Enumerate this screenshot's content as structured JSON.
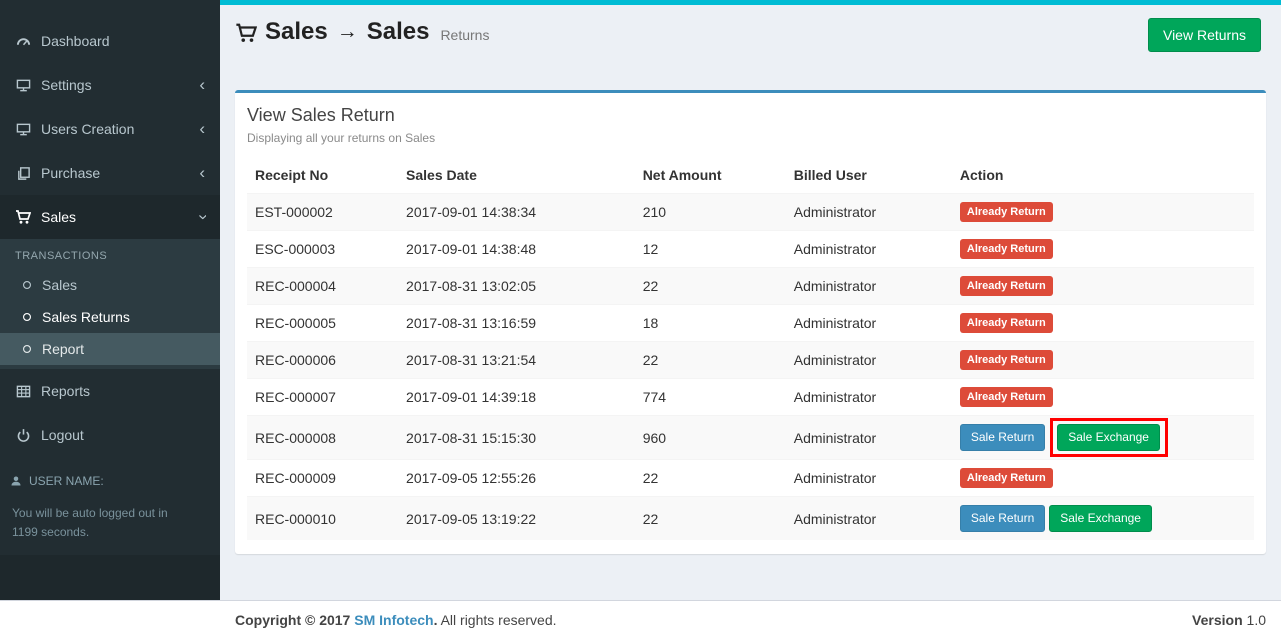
{
  "colors": {
    "accent_strip": "#00bcd4",
    "primary_blue": "#3c8dbc",
    "success_green": "#00a65a",
    "danger_red": "#dd4b39",
    "sidebar_bg": "#222d32",
    "highlight_red": "#ff0000"
  },
  "sidebar": {
    "items": [
      {
        "label": "Dashboard",
        "icon": "dashboard-icon"
      },
      {
        "label": "Settings",
        "icon": "desktop-icon",
        "chevron": "left"
      },
      {
        "label": "Users Creation",
        "icon": "desktop-icon",
        "chevron": "left"
      },
      {
        "label": "Purchase",
        "icon": "copy-icon",
        "chevron": "left"
      },
      {
        "label": "Sales",
        "icon": "cart-icon",
        "chevron": "down",
        "active": true
      }
    ],
    "section_label": "TRANSACTIONS",
    "submenu": [
      {
        "label": "Sales",
        "icon": "circle-icon"
      },
      {
        "label": "Sales Returns",
        "icon": "circle-icon",
        "active": true
      },
      {
        "label": "Report",
        "icon": "circle-icon",
        "hovered": true
      }
    ],
    "items_bottom": [
      {
        "label": "Reports",
        "icon": "table-icon"
      },
      {
        "label": "Logout",
        "icon": "power-icon"
      }
    ],
    "user_label": "USER NAME:",
    "logout_notice": "You will be auto logged out in 1199 seconds."
  },
  "header": {
    "title_primary": "Sales",
    "arrow": "→",
    "title_secondary": "Sales",
    "title_sub": "Returns",
    "view_returns_button": "View Returns"
  },
  "panel": {
    "title": "View Sales Return",
    "subtitle": "Displaying all your returns on Sales",
    "table": {
      "columns": [
        "Receipt No",
        "Sales Date",
        "Net Amount",
        "Billed User",
        "Action"
      ],
      "rows": [
        {
          "receipt_no": "EST-000002",
          "sales_date": "2017-09-01 14:38:34",
          "net_amount": "210",
          "billed_user": "Administrator",
          "actions": [
            {
              "label": "Already Return",
              "kind": "badge",
              "style": "danger"
            }
          ]
        },
        {
          "receipt_no": "ESC-000003",
          "sales_date": "2017-09-01 14:38:48",
          "net_amount": "12",
          "billed_user": "Administrator",
          "actions": [
            {
              "label": "Already Return",
              "kind": "badge",
              "style": "danger"
            }
          ]
        },
        {
          "receipt_no": "REC-000004",
          "sales_date": "2017-08-31 13:02:05",
          "net_amount": "22",
          "billed_user": "Administrator",
          "actions": [
            {
              "label": "Already Return",
              "kind": "badge",
              "style": "danger"
            }
          ]
        },
        {
          "receipt_no": "REC-000005",
          "sales_date": "2017-08-31 13:16:59",
          "net_amount": "18",
          "billed_user": "Administrator",
          "actions": [
            {
              "label": "Already Return",
              "kind": "badge",
              "style": "danger"
            }
          ]
        },
        {
          "receipt_no": "REC-000006",
          "sales_date": "2017-08-31 13:21:54",
          "net_amount": "22",
          "billed_user": "Administrator",
          "actions": [
            {
              "label": "Already Return",
              "kind": "badge",
              "style": "danger"
            }
          ]
        },
        {
          "receipt_no": "REC-000007",
          "sales_date": "2017-09-01 14:39:18",
          "net_amount": "774",
          "billed_user": "Administrator",
          "actions": [
            {
              "label": "Already Return",
              "kind": "badge",
              "style": "danger"
            }
          ]
        },
        {
          "receipt_no": "REC-000008",
          "sales_date": "2017-08-31 15:15:30",
          "net_amount": "960",
          "billed_user": "Administrator",
          "actions": [
            {
              "label": "Sale Return",
              "kind": "button",
              "style": "primary"
            },
            {
              "label": "Sale Exchange",
              "kind": "button",
              "style": "success",
              "highlighted": true
            }
          ]
        },
        {
          "receipt_no": "REC-000009",
          "sales_date": "2017-09-05 12:55:26",
          "net_amount": "22",
          "billed_user": "Administrator",
          "actions": [
            {
              "label": "Already Return",
              "kind": "badge",
              "style": "danger"
            }
          ]
        },
        {
          "receipt_no": "REC-000010",
          "sales_date": "2017-09-05 13:19:22",
          "net_amount": "22",
          "billed_user": "Administrator",
          "actions": [
            {
              "label": "Sale Return",
              "kind": "button",
              "style": "primary"
            },
            {
              "label": "Sale Exchange",
              "kind": "button",
              "style": "success"
            }
          ]
        }
      ]
    }
  },
  "footer": {
    "copyright_prefix": "Copyright © 2017",
    "company": "SM Infotech",
    "period": ".",
    "rights": " All rights reserved.",
    "version_label": "Version",
    "version_value": "1.0"
  }
}
